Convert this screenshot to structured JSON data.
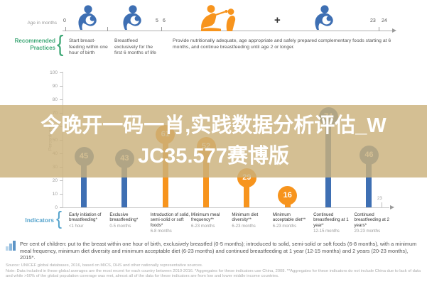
{
  "colors": {
    "blue": "#3e6fb3",
    "orange": "#f7941d",
    "green": "#3fa877",
    "light_blue": "#54a3cc",
    "banner_bg": "rgba(203,177,123,0.82)",
    "banner_text": "#ffffff"
  },
  "timeline": {
    "label": "Age in months",
    "plus": "+",
    "tick_labels": [
      "0",
      "5",
      "6",
      "23",
      "24"
    ]
  },
  "recommended": {
    "title": "Recommended Practices",
    "brace": "{",
    "items": [
      "Start breast-feeding within one hour of birth",
      "Breastfeed exclusively for the first 6 months of life",
      "Provide nutritionally adequate, age appropriate and safely prepared complementary foods starting at 6 months, and continue breastfeeding until age 2 or longer."
    ]
  },
  "banner": {
    "line1": "今晚开一码一肖,实践数据分析评估_W",
    "line2": "JC35.577赛博版"
  },
  "chart_data": {
    "type": "bar",
    "style": "lollipop",
    "title": "",
    "xlabel": "",
    "ylabel": "Percentage",
    "ylim": [
      0,
      100
    ],
    "ytick_step": 10,
    "x_end_label": "23",
    "categories": [
      "Early initiation of breastfeeding* (<1 hour)",
      "Exclusive breastfeeding* (0-5 months)",
      "Introduction of solid, semi-solid or soft foods* (6-8 months)",
      "Minimum meal frequency** (6-23 months)",
      "Minimum diet diversity** (6-23 months)",
      "Minimum acceptable diet** (6-23 months)",
      "Continued breastfeeding at 1 year* (12-15 months)",
      "Continued breastfeeding at 2 years* (20-23 months)"
    ],
    "values": [
      45,
      43,
      61,
      52,
      29,
      16,
      74,
      46
    ],
    "bar_colors": [
      "blue",
      "blue",
      "orange",
      "orange",
      "orange",
      "orange",
      "blue",
      "blue"
    ],
    "legend": null,
    "grid": false
  },
  "indicators": {
    "title": "Indicators",
    "brace": "{",
    "items": [
      {
        "name": "Early initiation of breastfeeding*",
        "range": "<1 hour"
      },
      {
        "name": "Exclusive breastfeeding*",
        "range": "0-5 months"
      },
      {
        "name": "Introduction of solid, semi-solid or soft foods*",
        "range": "6-8 months"
      },
      {
        "name": "Minimum meal frequency**",
        "range": "6-23 months"
      },
      {
        "name": "Minimum diet diversity**",
        "range": "6-23 months"
      },
      {
        "name": "Minimum acceptable diet**",
        "range": "6-23 months"
      },
      {
        "name": "Continued breastfeeding at 1 year*",
        "range": "12-15 months"
      },
      {
        "name": "Continued breastfeeding at 2 years*",
        "range": "20-23 months"
      }
    ]
  },
  "footer": {
    "description": "Per cent of children: put to the breast within one hour of birth, exclusively breastfed (0-5 months); introduced to solid, semi-solid or soft foods (6-8 months), with a minimum meal frequency, minimum diet diversity and minimum acceptable diet (6-23 months) and continued breastfeeding at 1 year (12-15 months) and 2 years (20-23 months), 2015*.",
    "source": "Source: UNICEF global databases, 2016, based on MICS, DHS and other nationally representative sources.",
    "note": "Note: Data included in these global averages are the most recent for each country between 2010-2016. *Aggregates for these indicators use China, 2008. **Aggregates for these indicators do not include China due to lack of data and while >50% of the global population coverage was met, almost all of the data for these indicators are from low and lower middle income countries."
  }
}
